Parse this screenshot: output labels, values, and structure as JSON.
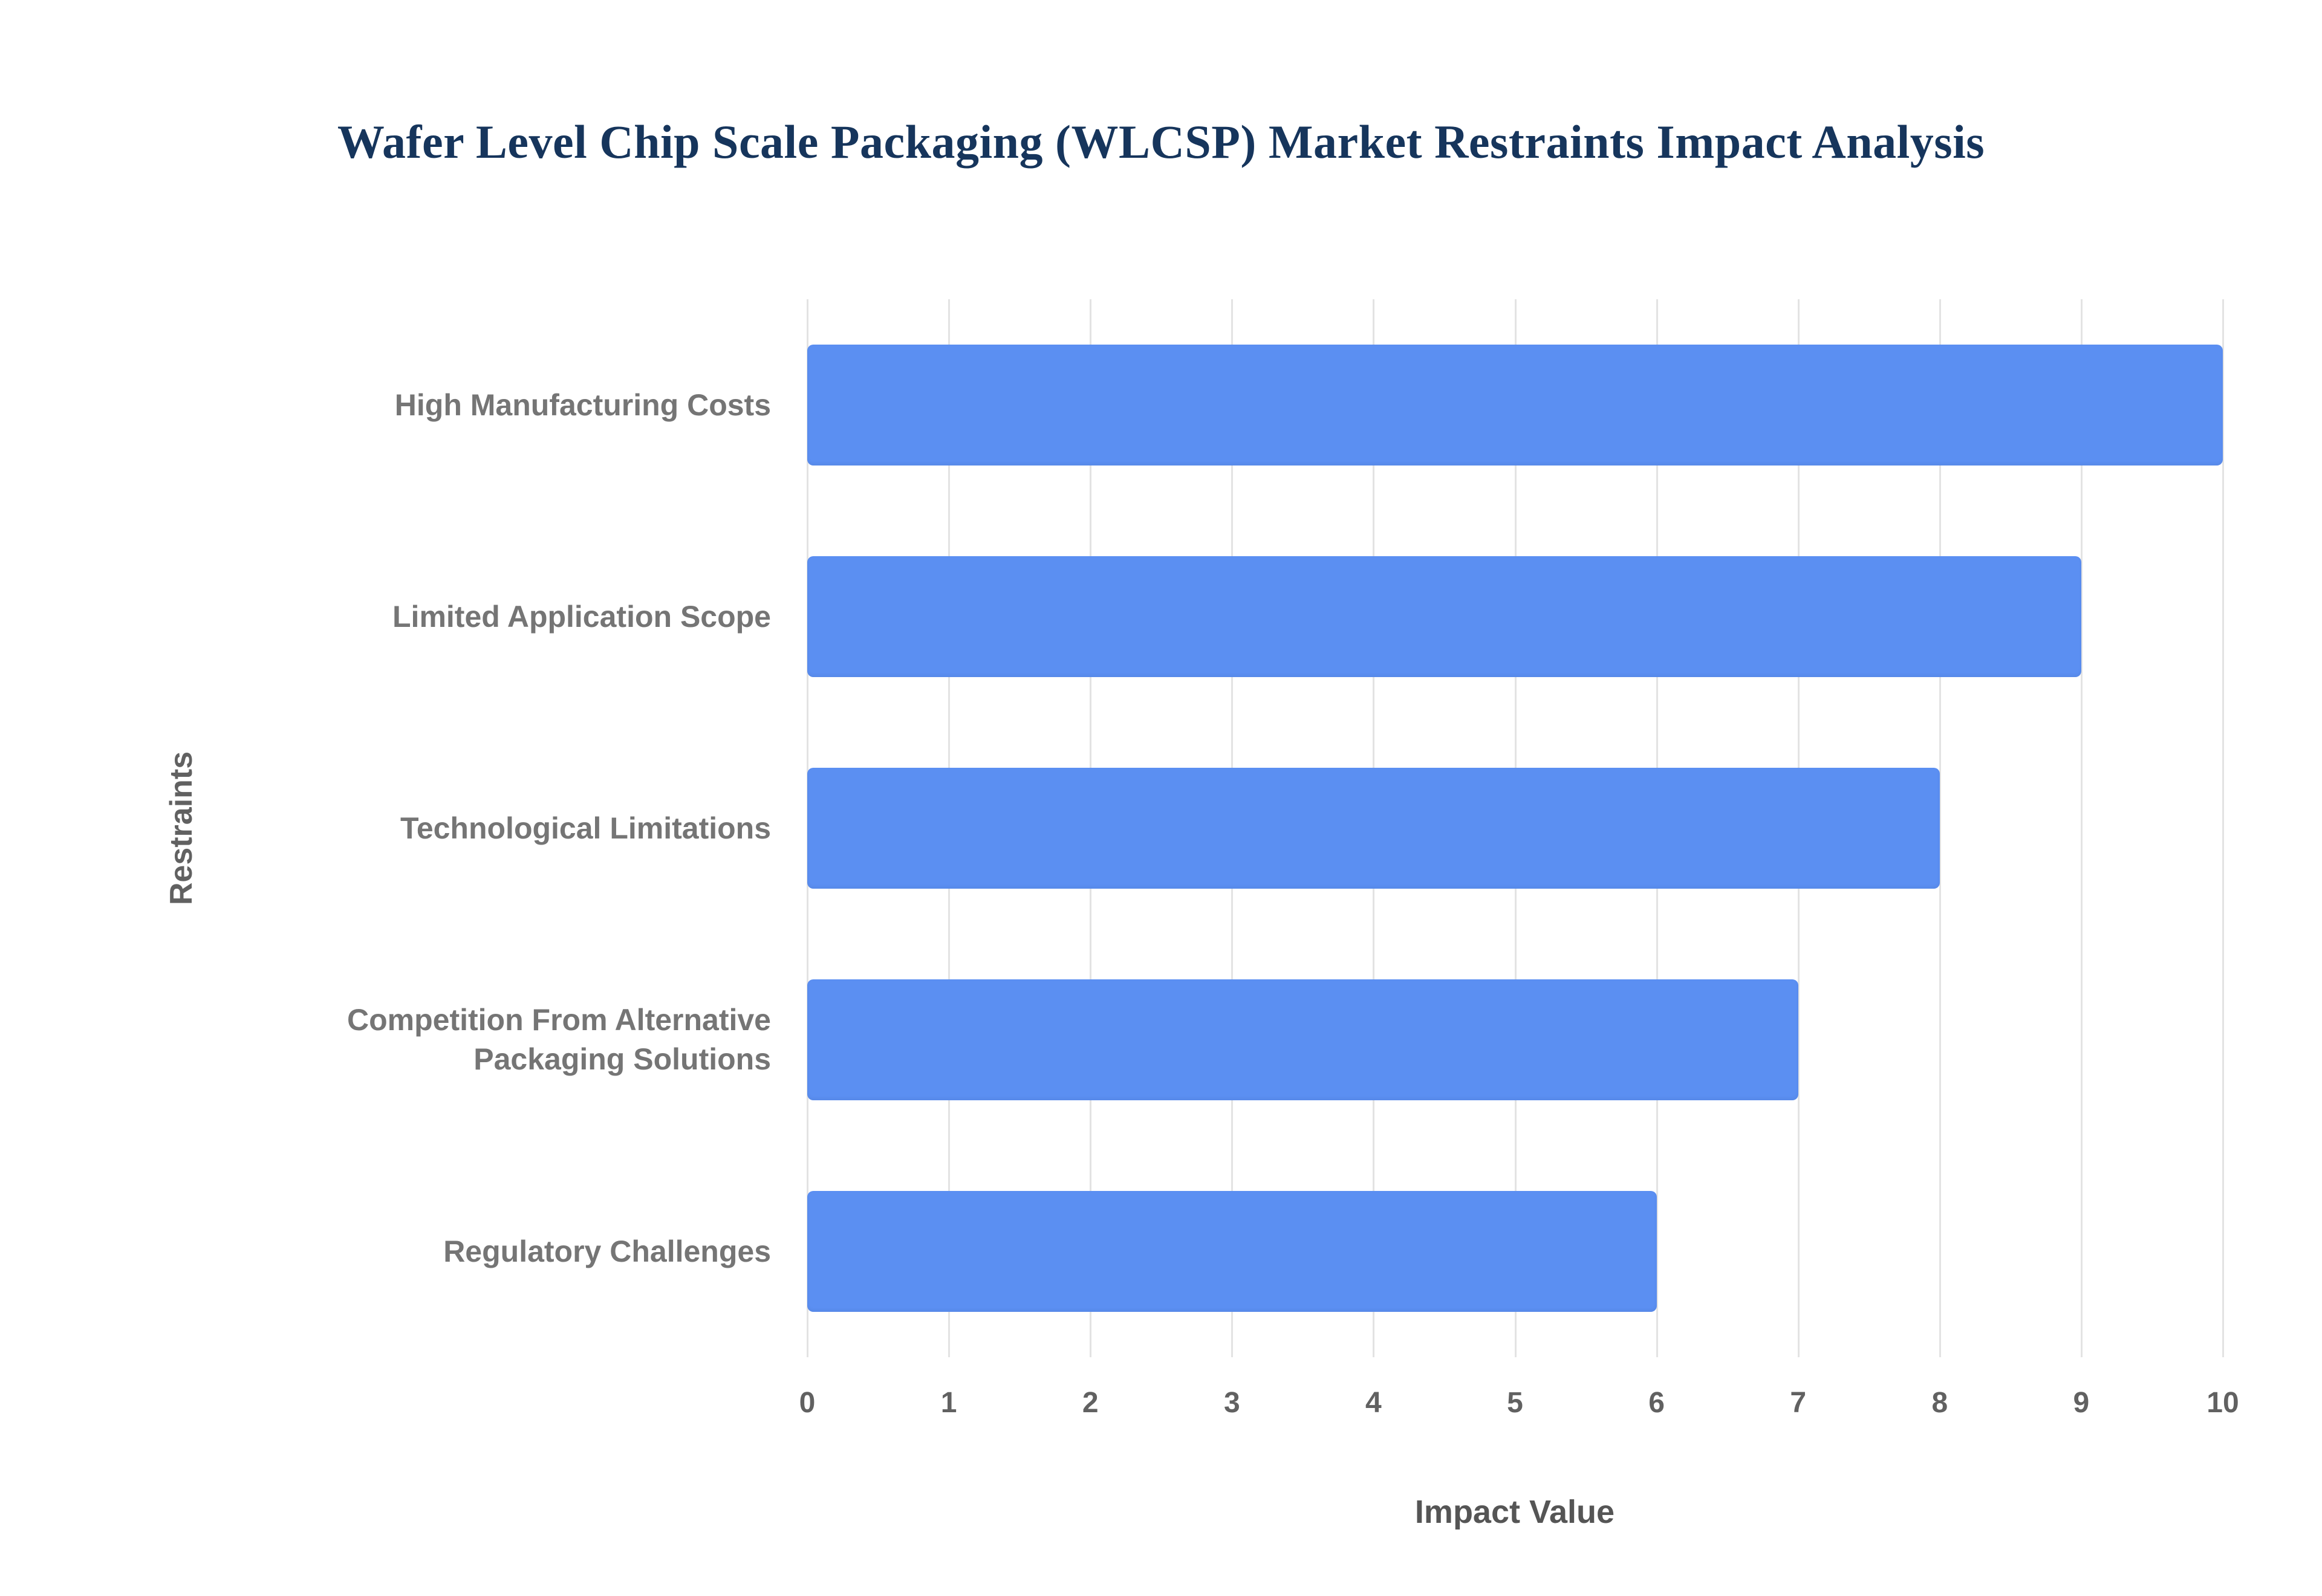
{
  "chart_data": {
    "type": "bar",
    "orientation": "horizontal",
    "title": "Wafer Level Chip Scale Packaging (WLCSP) Market Restraints Impact Analysis",
    "categories": [
      "High Manufacturing Costs",
      "Limited Application Scope",
      "Technological Limitations",
      "Competition From Alternative Packaging Solutions",
      "Regulatory Challenges"
    ],
    "values": [
      10,
      9,
      8,
      7,
      6
    ],
    "xlabel": "Impact Value",
    "ylabel": "Restraints",
    "xlim": [
      0,
      10
    ],
    "xticks": [
      0,
      1,
      2,
      3,
      4,
      5,
      6,
      7,
      8,
      9,
      10
    ],
    "grid": true,
    "legend": false,
    "colors": {
      "bar": "#5b8ff2",
      "title": "#16355c",
      "label": "#757575",
      "tick": "#616161",
      "gridline": "#e3e3e3",
      "background": "#ffffff"
    }
  }
}
